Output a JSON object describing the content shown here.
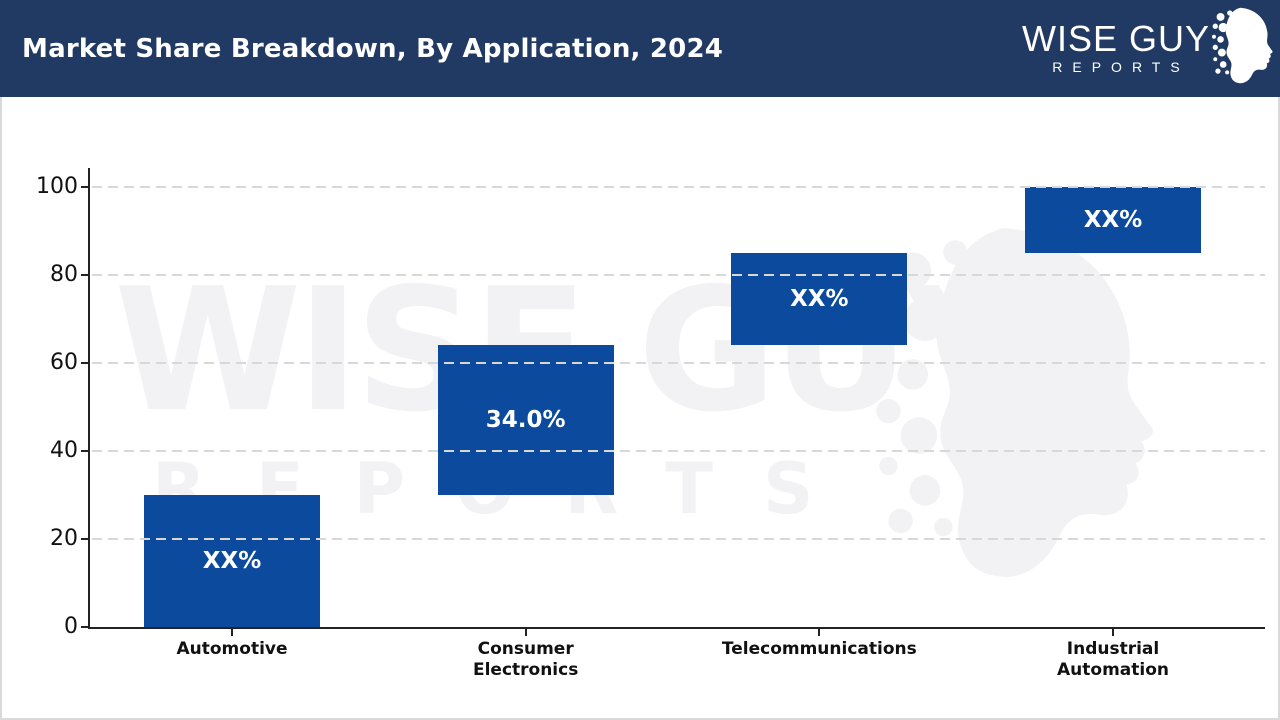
{
  "header": {
    "title": "Market Share Breakdown, By Application, 2024",
    "bg_color": "#213a64",
    "logo": {
      "wordmark": "WISE GUY",
      "subtitle": "REPORTS"
    }
  },
  "watermark": {
    "line1": "WISE GUY",
    "line2": "REPORTS"
  },
  "chart_data": {
    "type": "bar",
    "subtype": "floating-segment-waterfall",
    "title": "Market Share Breakdown, By Application, 2024",
    "xlabel": "",
    "ylabel": "",
    "ylim": [
      0,
      100
    ],
    "yticks": [
      0,
      20,
      40,
      60,
      80,
      100
    ],
    "grid": "horizontal-dashed",
    "legend": "none",
    "bar_color": "#0b4a9d",
    "label_color": "#ffffff",
    "categories": [
      "Automotive",
      "Consumer\nElectronics",
      "Telecommunications",
      "Industrial\nAutomation"
    ],
    "segments": [
      {
        "category": "Automotive",
        "from": 0,
        "to": 30,
        "label": "XX%"
      },
      {
        "category": "Consumer Electronics",
        "from": 30,
        "to": 64,
        "label": "34.0%"
      },
      {
        "category": "Telecommunications",
        "from": 64,
        "to": 85,
        "label": "XX%"
      },
      {
        "category": "Industrial Automation",
        "from": 85,
        "to": 100,
        "label": "XX%"
      }
    ]
  }
}
